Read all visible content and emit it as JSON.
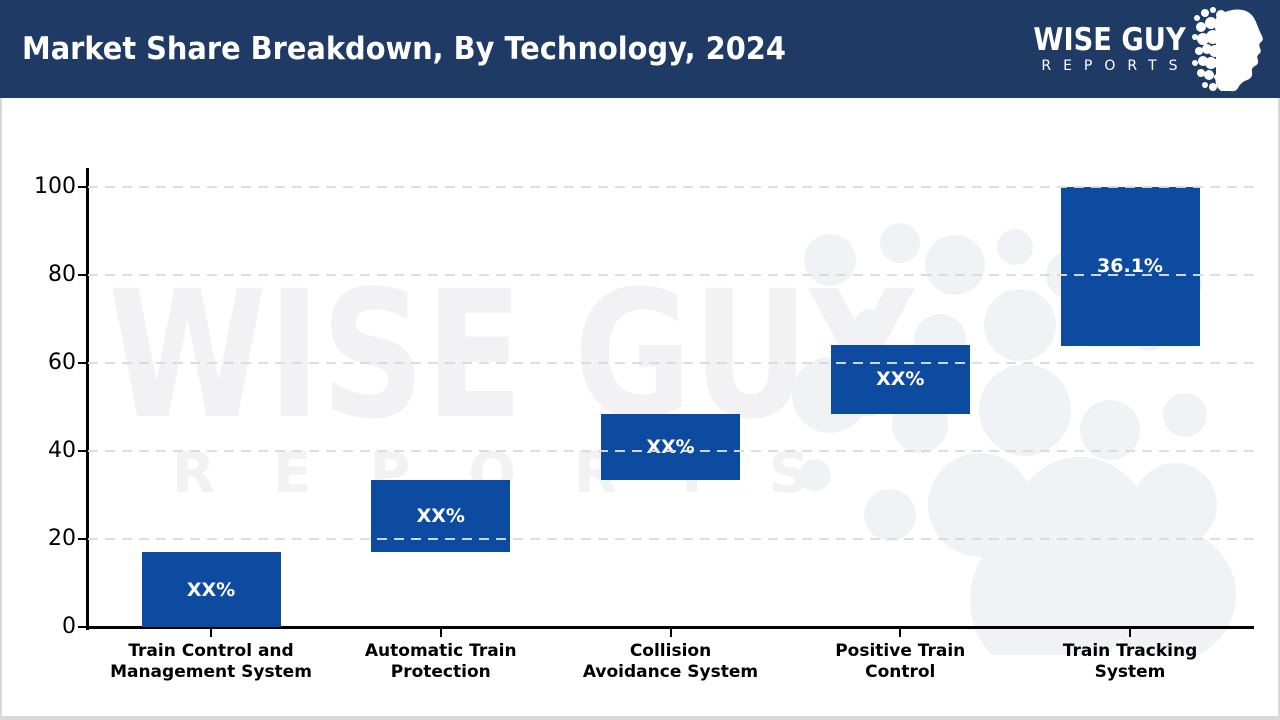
{
  "header": {
    "title": "Market Share Breakdown, By Technology, 2024",
    "logo": {
      "primary": "WISE GUY",
      "secondary": "REPORTS"
    }
  },
  "watermark": {
    "line1": "WISE GUY",
    "line2": "REPORTS"
  },
  "colors": {
    "header_bg": "#203a66",
    "bar": "#0d4ba1",
    "grid": "#dbdbdb",
    "axis": "#000000",
    "bar_label": "#ffffff",
    "watermark": "#f2f2f4",
    "frame_border": "#d9d9d9"
  },
  "chart_data": {
    "type": "bar",
    "subtype": "waterfall",
    "title": "Market Share Breakdown, By Technology, 2024",
    "xlabel": "",
    "ylabel": "",
    "ylim": [
      0,
      100
    ],
    "yticks": [
      "0",
      "20",
      "40",
      "60",
      "80",
      "100"
    ],
    "grid": "horizontal-dashed",
    "legend": "none",
    "categories": [
      [
        "Train Control and",
        "Management System"
      ],
      [
        "Automatic Train",
        "Protection"
      ],
      [
        "Collision",
        "Avoidance System"
      ],
      [
        "Positive Train",
        "Control"
      ],
      [
        "Train Tracking",
        "System"
      ]
    ],
    "series": [
      {
        "name": "Market share (%)",
        "segments": [
          {
            "start": 0,
            "end": 17,
            "label": "XX%"
          },
          {
            "start": 17,
            "end": 33.3,
            "label": "XX%"
          },
          {
            "start": 33.5,
            "end": 48.3,
            "label": "XX%"
          },
          {
            "start": 48.5,
            "end": 64.0,
            "label": "XX%"
          },
          {
            "start": 63.9,
            "end": 100,
            "label": "36.1%"
          }
        ]
      }
    ]
  }
}
